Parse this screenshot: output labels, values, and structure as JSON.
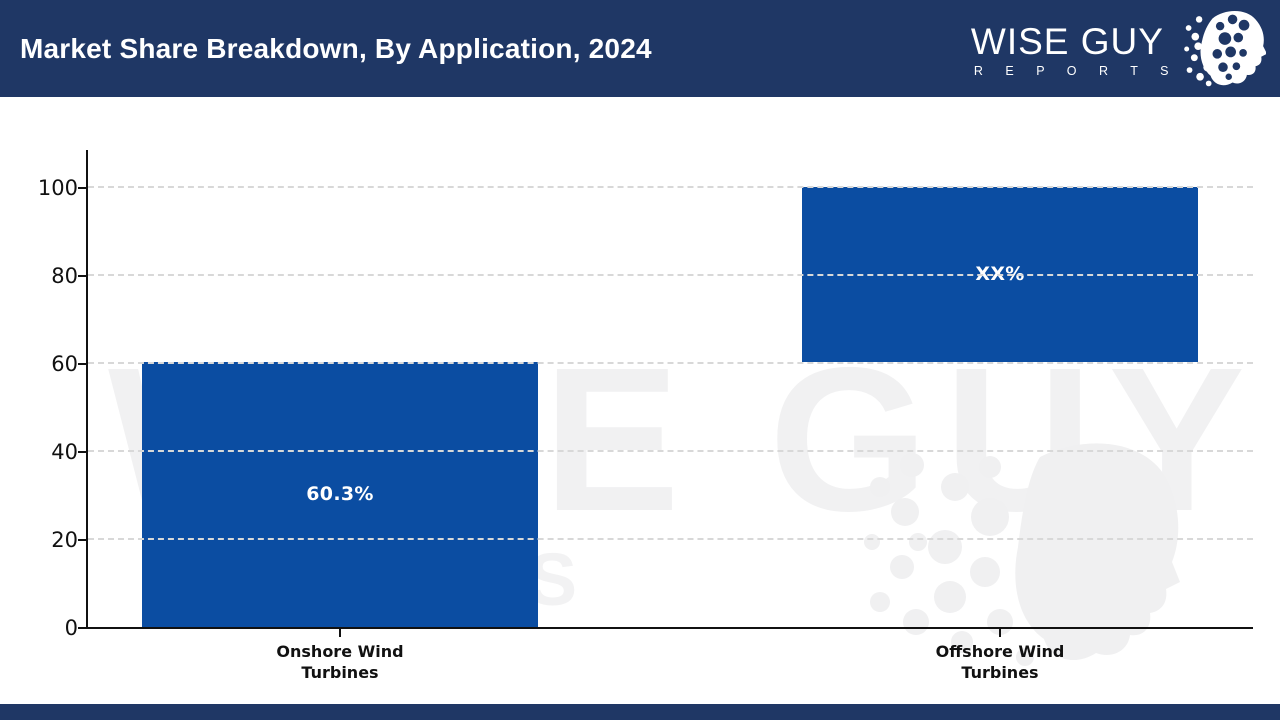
{
  "header": {
    "title": "Market Share Breakdown, By Application, 2024",
    "logo": {
      "name": "WISE GUY",
      "subtitle": "R E P O R T S"
    }
  },
  "watermark": {
    "line1": "WISE GUY",
    "line2": "R T S"
  },
  "colors": {
    "header_bg": "#1f3765",
    "bar": "#0b4da2",
    "grid": "#d8d8d8",
    "axis": "#111111",
    "watermark": "#f1f1f2",
    "bar_label": "#ffffff"
  },
  "chart_data": {
    "type": "bar",
    "variant": "floating-segments",
    "title": "Market Share Breakdown, By Application, 2024",
    "categories": [
      "Onshore Wind\nTurbines",
      "Offshore Wind\nTurbines"
    ],
    "bars": [
      {
        "category": "Onshore Wind\nTurbines",
        "start": 0,
        "end": 60.3,
        "label": "60.3%"
      },
      {
        "category": "Offshore Wind\nTurbines",
        "start": 60.3,
        "end": 100,
        "label": "XX%"
      }
    ],
    "ylim": [
      0,
      108
    ],
    "yticks": [
      0,
      20,
      40,
      60,
      80,
      100
    ],
    "xlabel": "",
    "ylabel": "",
    "grid": "horizontal-dashed, drawn over bars",
    "legend": "none",
    "bar_color": "#0b4da2",
    "value_label_color": "#ffffff"
  }
}
